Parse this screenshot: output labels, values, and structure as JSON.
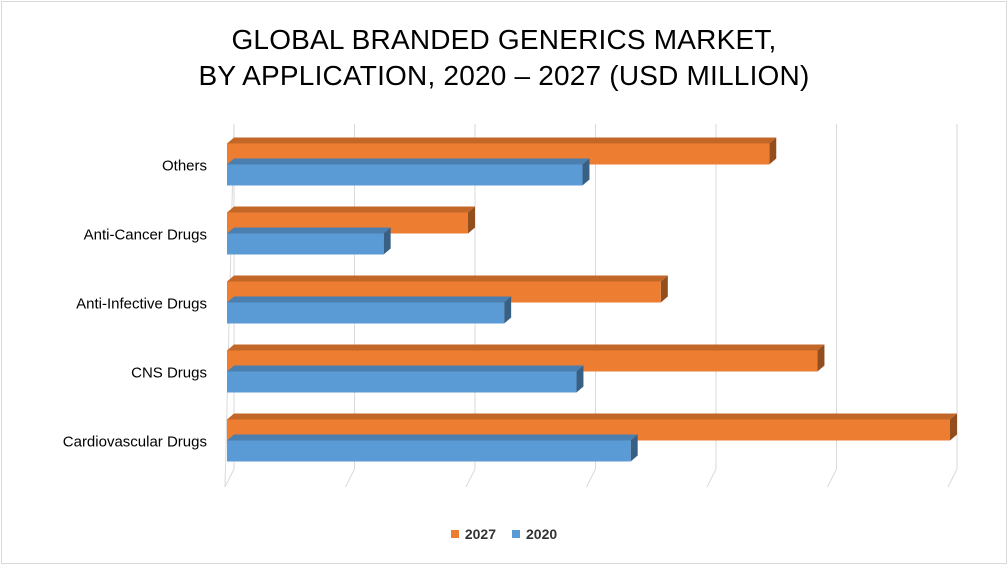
{
  "chart_data": {
    "type": "bar",
    "orientation": "horizontal",
    "title_lines": [
      "GLOBAL BRANDED GENERICS MARKET,",
      "BY APPLICATION, 2020 – 2027 (USD MILLION)"
    ],
    "categories": [
      "Cardiovascular Drugs",
      "CNS Drugs",
      "Anti-Infective Drugs",
      "Anti-Cancer Drugs",
      "Others"
    ],
    "series": [
      {
        "name": "2027",
        "color": "#ed7d31",
        "values": [
          6.0,
          4.9,
          3.6,
          2.0,
          4.5
        ]
      },
      {
        "name": "2020",
        "color": "#5b9bd5",
        "values": [
          3.35,
          2.9,
          2.3,
          1.3,
          2.95
        ]
      }
    ],
    "xlim": [
      0,
      6
    ],
    "grid": true,
    "legend_position": "bottom",
    "xlabel": "",
    "ylabel": ""
  }
}
